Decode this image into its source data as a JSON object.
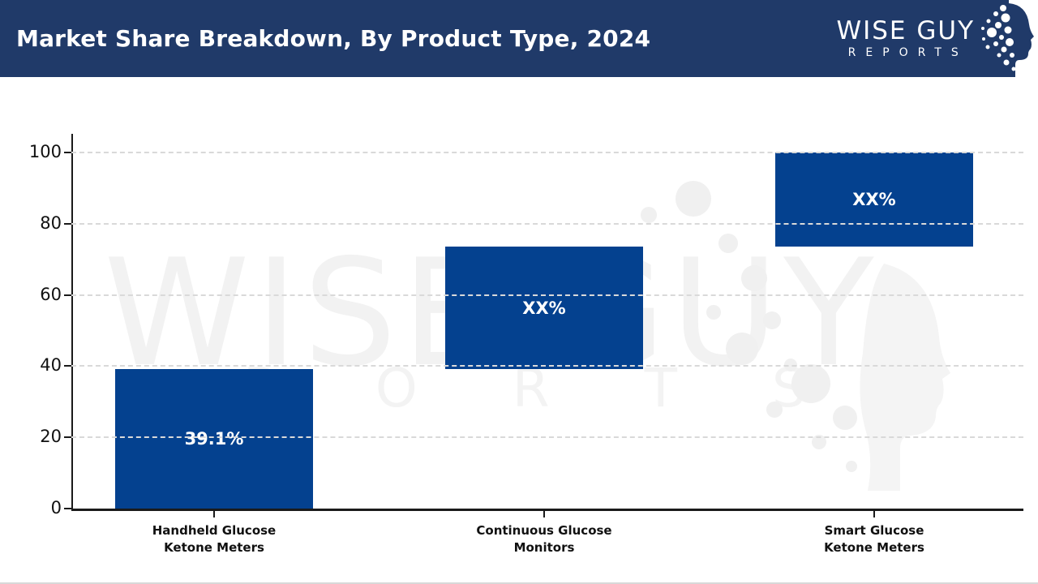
{
  "header": {
    "title": "Market Share Breakdown, By Product Type, 2024",
    "logo": {
      "line1": "WISE GUY",
      "line2": "REPORTS"
    }
  },
  "watermark": {
    "line1": "WISE GUY",
    "line2": "R O R T S"
  },
  "chart_data": {
    "type": "bar",
    "subtype": "stacked-waterfall-percentage",
    "title": "Market Share Breakdown, By Product Type, 2024",
    "categories": [
      "Handheld Glucose\nKetone Meters",
      "Continuous Glucose\nMonitors",
      "Smart Glucose\nKetone Meters"
    ],
    "segments": [
      {
        "label": "39.1%",
        "start": 0,
        "end": 39.1
      },
      {
        "label": "XX%",
        "start": 39.1,
        "end": 73.5
      },
      {
        "label": "XX%",
        "start": 73.5,
        "end": 100
      }
    ],
    "yticks": [
      0,
      20,
      40,
      60,
      80,
      100
    ],
    "ylim": [
      0,
      105
    ],
    "grid": "horizontal-dashed",
    "legend": "none",
    "bar_color": "#04418f",
    "bar_label_color": "#ffffff",
    "axis_color": "#1a1a1a",
    "grid_color": "#d9d9d9"
  },
  "colors": {
    "header_bg": "#203a69",
    "header_text": "#ffffff",
    "page_bg": "#ffffff",
    "watermark": "#f2f2f2"
  }
}
